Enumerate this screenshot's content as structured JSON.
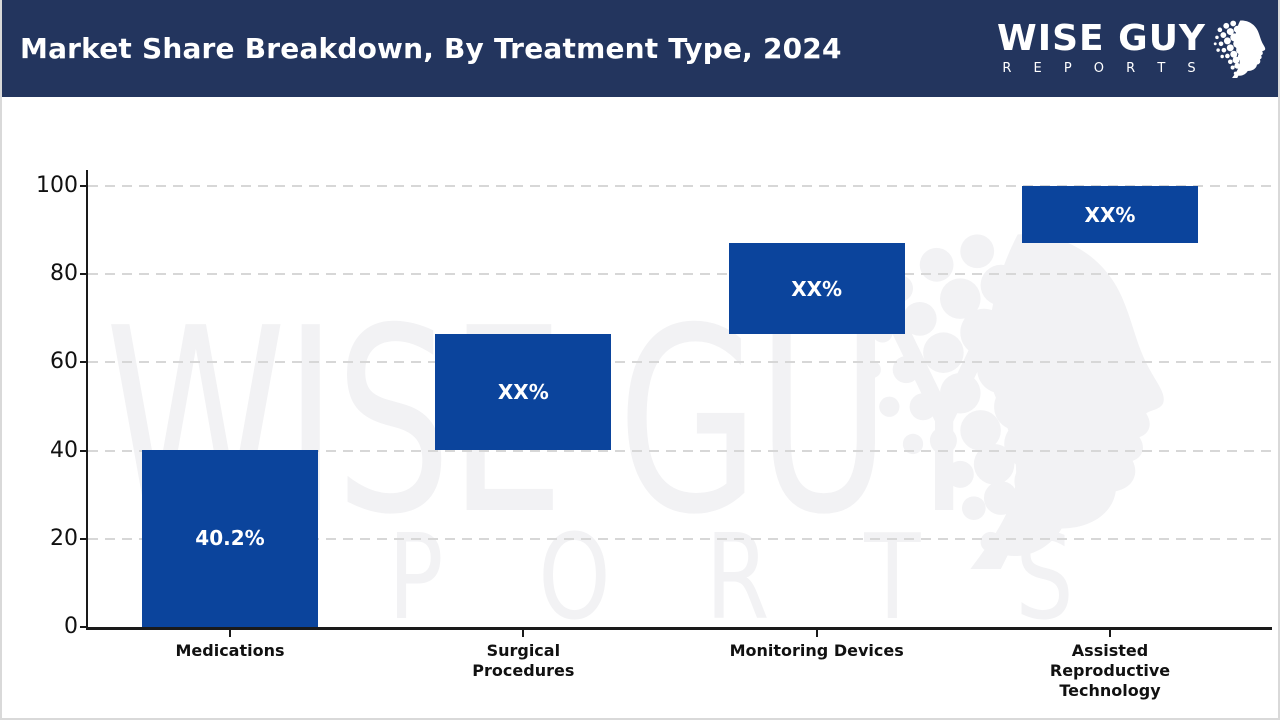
{
  "header": {
    "title": "Market Share Breakdown, By Treatment Type, 2024",
    "logo": {
      "line1": "WISE GUY",
      "line2": "R E P O R T S"
    }
  },
  "watermark": {
    "line1": "WISE GUY",
    "line2": "P O R T S"
  },
  "colors": {
    "header_bg": "#23355E",
    "bar_blue": "#0B449C",
    "axis": "#1a1a1a",
    "grid": "#d7d7d7",
    "watermark": "#f2f2f4",
    "bar_label": "#ffffff"
  },
  "chart_data": {
    "type": "bar",
    "subtype": "waterfall",
    "title": "Market Share Breakdown, By Treatment Type, 2024",
    "categories": [
      "Medications",
      "Surgical Procedures",
      "Monitoring Devices",
      "Assisted Reproductive Technology"
    ],
    "categories_display": [
      "Medications",
      "Surgical\nProcedures",
      "Monitoring Devices",
      "Assisted\nReproductive\nTechnology"
    ],
    "segments": [
      {
        "category": "Medications",
        "start": 0,
        "end": 40.2,
        "label": "40.2%"
      },
      {
        "category": "Surgical Procedures",
        "start": 40.2,
        "end": 66.5,
        "label": "XX%"
      },
      {
        "category": "Monitoring Devices",
        "start": 66.5,
        "end": 87.0,
        "label": "XX%"
      },
      {
        "category": "Assisted Reproductive Technology",
        "start": 87.0,
        "end": 100,
        "label": "XX%"
      }
    ],
    "yticks": [
      0,
      20,
      40,
      60,
      80,
      100
    ],
    "ylim": [
      0,
      100
    ],
    "grid": "horizontal-dashed",
    "legend": "none",
    "bar_color": "#0B449C",
    "value_label_color": "#ffffff"
  }
}
